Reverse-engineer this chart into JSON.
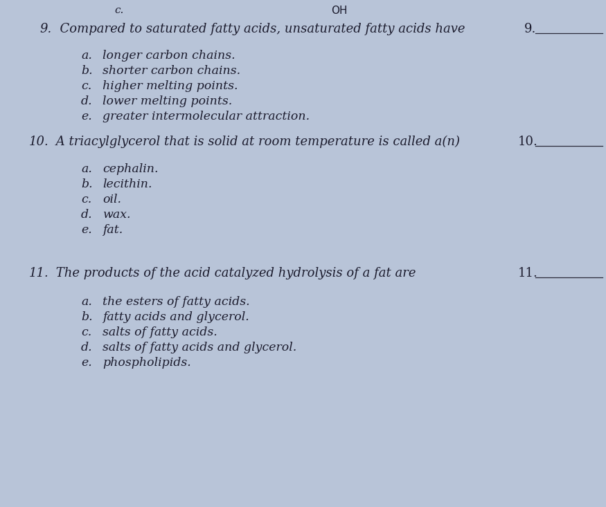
{
  "background_color": "#b8c4d8",
  "top_label": "c.",
  "top_oh": "OH",
  "q9_number_left": "9.",
  "q9_number_right": "9.",
  "q9_text": "  Compared to saturated fatty acids, unsaturated fatty acids have",
  "q9_choices_letters": [
    "a.",
    "b.",
    "c.",
    "d.",
    "e."
  ],
  "q9_choices_text": [
    "longer carbon chains.",
    "shorter carbon chains.",
    "higher melting points.",
    "lower melting points.",
    "greater intermolecular attraction."
  ],
  "q10_number_left": "10.",
  "q10_number_right": "10.",
  "q10_text": " A triacylglycerol that is solid at room temperature is called a(n)",
  "q10_choices_letters": [
    "a.",
    "b.",
    "c.",
    "d.",
    "e."
  ],
  "q10_choices_text": [
    "cephalin.",
    "lecithin.",
    "oil.",
    "wax.",
    "fat."
  ],
  "q11_number_left": "11.",
  "q11_number_right": "11.",
  "q11_text": " The products of the acid catalyzed hydrolysis of a fat are",
  "q11_choices_letters": [
    "a.",
    "b.",
    "c.",
    "d.",
    "e."
  ],
  "q11_choices_text": [
    "the esters of fatty acids.",
    "fatty acids and glycerol.",
    "salts of fatty acids.",
    "salts of fatty acids and glycerol.",
    "phospholipids."
  ],
  "text_color": "#1c1c2e",
  "font_size_question": 13,
  "font_size_choice": 12.5,
  "font_size_top": 11,
  "line_color": "#2a2a3a"
}
